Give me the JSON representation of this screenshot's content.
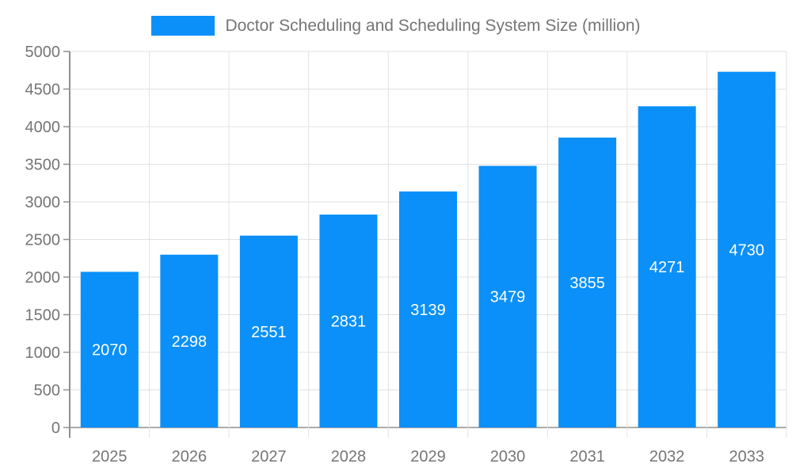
{
  "page": {
    "background": "#ffffff"
  },
  "legend": {
    "label": "Doctor Scheduling and Scheduling System Size (million)",
    "swatch_color": "#0a90f8"
  },
  "chart_data": {
    "type": "bar",
    "title": "Doctor Scheduling and Scheduling System Size (million)",
    "categories": [
      "2025",
      "2026",
      "2027",
      "2028",
      "2029",
      "2030",
      "2031",
      "2032",
      "2033"
    ],
    "values": [
      2070,
      2298,
      2551,
      2831,
      3139,
      3479,
      3855,
      4271,
      4730
    ],
    "xlabel": "",
    "ylabel": "",
    "ylim": [
      0,
      5000
    ],
    "ytick_step": 500,
    "ytick_labels": [
      "0",
      "500",
      "1000",
      "1500",
      "2000",
      "2500",
      "3000",
      "3500",
      "4000",
      "4500",
      "5000"
    ],
    "grid": true,
    "legend_position": "top",
    "value_labels": "centered-inside-bars",
    "colors": {
      "bar": "#0a90f8",
      "value_label": "#ffffff",
      "axis_text": "#757575",
      "grid_line": "#e2e2e2",
      "axis_line": "#8f8f8f"
    }
  }
}
